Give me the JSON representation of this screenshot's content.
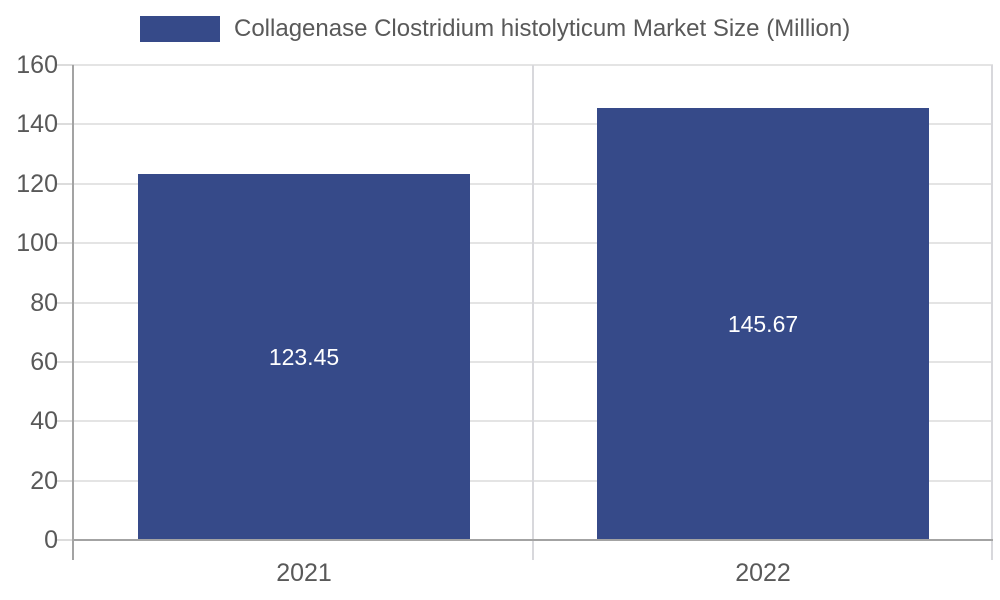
{
  "legend": {
    "label": "Collagenase Clostridium histolyticum Market Size (Million)"
  },
  "chart_data": {
    "type": "bar",
    "title": "Collagenase Clostridium histolyticum Market Size (Million)",
    "categories": [
      "2021",
      "2022"
    ],
    "series": [
      {
        "name": "Collagenase Clostridium histolyticum Market Size (Million)",
        "values": [
          123.45,
          145.67
        ]
      }
    ],
    "value_labels": [
      "123.45",
      "145.67"
    ],
    "xlabel": "",
    "ylabel": "",
    "ylim": [
      0,
      160
    ],
    "yticks": [
      0,
      20,
      40,
      60,
      80,
      100,
      120,
      140,
      160
    ],
    "grid": true,
    "legend_position": "top-left",
    "colors": {
      "bar": "#364A89",
      "value_label": "#ffffff",
      "axis_text": "#595959"
    }
  }
}
